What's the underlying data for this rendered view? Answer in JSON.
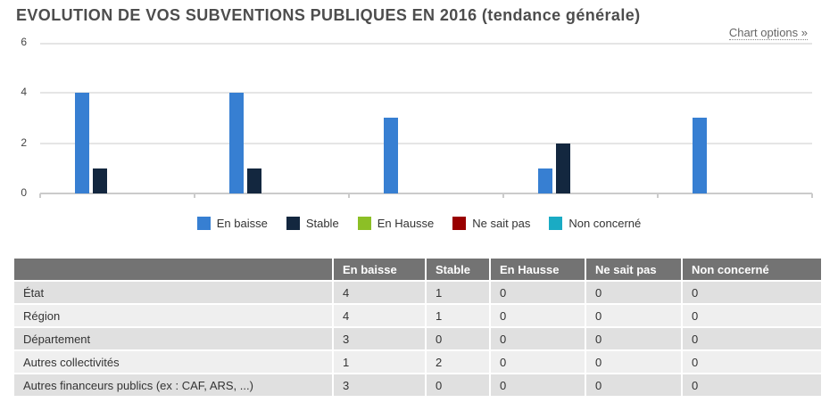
{
  "header": {
    "title": "EVOLUTION DE VOS SUBVENTIONS PUBLIQUES EN 2016 (tendance générale)",
    "chart_options_label": "Chart options »"
  },
  "chart_data": {
    "type": "bar",
    "title": "EVOLUTION DE VOS SUBVENTIONS PUBLIQUES EN 2016 (tendance générale)",
    "categories": [
      "État",
      "Région",
      "Département",
      "Autres collectivités",
      "Autres financeurs publics (ex : CAF, ARS, ...)"
    ],
    "series": [
      {
        "name": "En baisse",
        "color": "#377fd2",
        "values": [
          4,
          4,
          3,
          1,
          3
        ]
      },
      {
        "name": "Stable",
        "color": "#13273f",
        "values": [
          1,
          1,
          0,
          2,
          0
        ]
      },
      {
        "name": "En Hausse",
        "color": "#8cbf26",
        "values": [
          0,
          0,
          0,
          0,
          0
        ]
      },
      {
        "name": "Ne sait pas",
        "color": "#990000",
        "values": [
          0,
          0,
          0,
          0,
          0
        ]
      },
      {
        "name": "Non concerné",
        "color": "#1aabc4",
        "values": [
          0,
          0,
          0,
          0,
          0
        ]
      }
    ],
    "ylim": [
      0,
      6
    ],
    "yticks": [
      0,
      2,
      4,
      6
    ],
    "grid": true,
    "legend_position": "bottom",
    "x_tick_labels_visible": false
  },
  "table": {
    "headers": [
      "",
      "En baisse",
      "Stable",
      "En Hausse",
      "Ne sait pas",
      "Non concerné"
    ],
    "rows": [
      {
        "label": "État",
        "values": [
          "4",
          "1",
          "0",
          "0",
          "0"
        ]
      },
      {
        "label": "Région",
        "values": [
          "4",
          "1",
          "0",
          "0",
          "0"
        ]
      },
      {
        "label": "Département",
        "values": [
          "3",
          "0",
          "0",
          "0",
          "0"
        ]
      },
      {
        "label": "Autres collectivités",
        "values": [
          "1",
          "2",
          "0",
          "0",
          "0"
        ]
      },
      {
        "label": "Autres financeurs publics (ex : CAF, ARS, ...)",
        "values": [
          "3",
          "0",
          "0",
          "0",
          "0"
        ]
      }
    ]
  }
}
